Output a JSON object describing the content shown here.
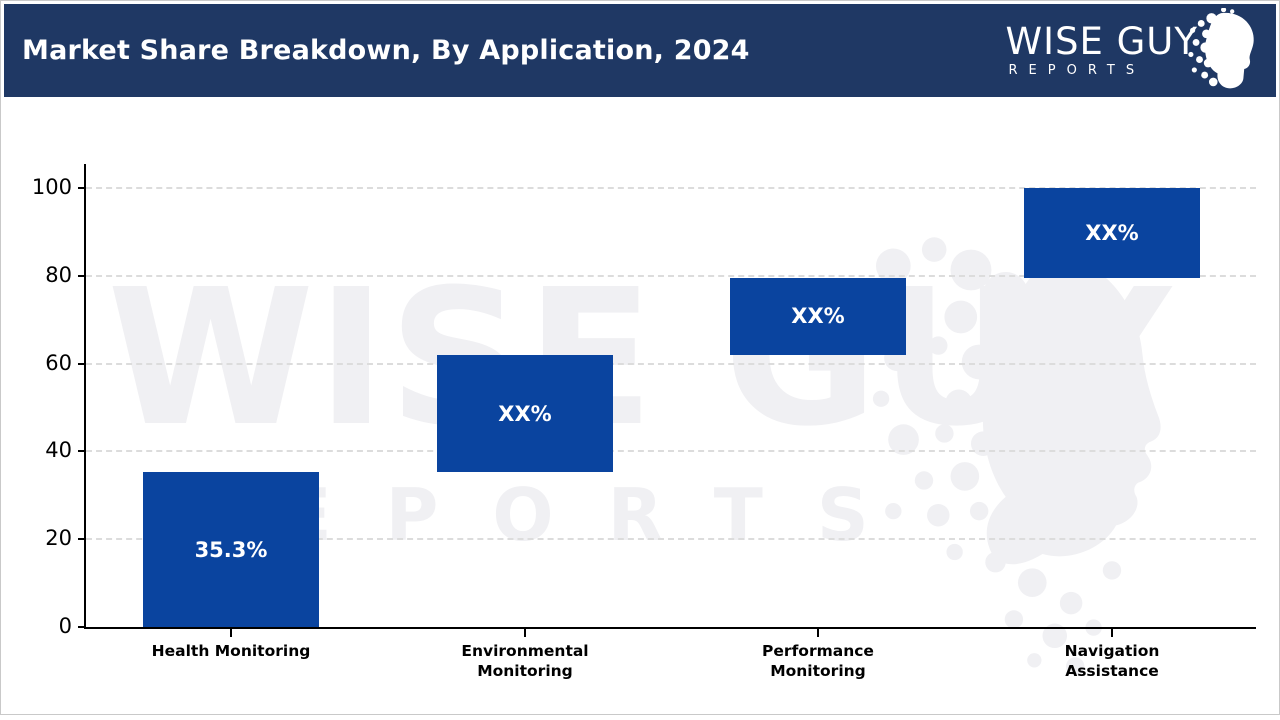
{
  "header": {
    "title": "Market Share Breakdown, By Application, 2024",
    "logo": {
      "name": "WISE GUY",
      "subtitle": "REPORTS"
    }
  },
  "watermark": {
    "line1": "WISE GUY",
    "line2": "REPORTS"
  },
  "colors": {
    "header_bg": "#1f3864",
    "bar": "#0a449f",
    "bar_label_text": "#ffffff",
    "gridline": "#dcdcdc",
    "axis": "#000000",
    "watermark": "#f0f0f3",
    "border": "#c9c9c9"
  },
  "chart_data": {
    "type": "bar",
    "subtype": "waterfall",
    "title": "Market Share Breakdown, By Application, 2024",
    "categories": [
      "Health Monitoring",
      "Environmental Monitoring",
      "Performance Monitoring",
      "Navigation Assistance"
    ],
    "category_lines": [
      [
        "Health Monitoring"
      ],
      [
        "Environmental",
        "Monitoring"
      ],
      [
        "Performance",
        "Monitoring"
      ],
      [
        "Navigation",
        "Assistance"
      ]
    ],
    "segments": [
      {
        "category": "Health Monitoring",
        "from": 0,
        "to": 35.3,
        "label": "35.3%"
      },
      {
        "category": "Environmental Monitoring",
        "from": 35.3,
        "to": 61.9,
        "label": "XX%"
      },
      {
        "category": "Performance Monitoring",
        "from": 61.9,
        "to": 79.6,
        "label": "XX%"
      },
      {
        "category": "Navigation Assistance",
        "from": 79.6,
        "to": 100,
        "label": "XX%"
      }
    ],
    "xlabel": "",
    "ylabel": "",
    "ylim": [
      0,
      100
    ],
    "yticks": [
      0,
      20,
      40,
      60,
      80,
      100
    ],
    "grid": "horizontal-dashed",
    "legend": "none"
  }
}
